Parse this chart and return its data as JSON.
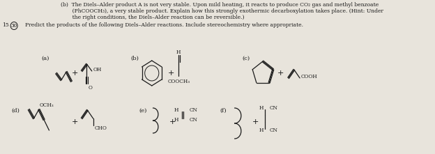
{
  "background_color": "#e8e4dc",
  "text_color": "#1a1a1a",
  "fig_width": 6.24,
  "fig_height": 2.21,
  "dpi": 100,
  "line1": "(b)  The Diels–Alder product A is not very stable. Upon mild heating, it reacts to produce CO₂ gas and methyl benzoate",
  "line2": "       (PhCOOCH₃), a very stable product. Explain how this strongly exothermic decarboxylation takes place. (Hint: Under",
  "line3": "       the right conditions, the Diels–Alder reaction can be reversible.)",
  "line4": "   Predict the products of the following Diels–Alder reactions. Include stereochemistry where appropriate.",
  "font_size_main": 5.5,
  "font_size_label": 6.0,
  "font_size_chem": 5.2,
  "font_size_small": 4.8
}
